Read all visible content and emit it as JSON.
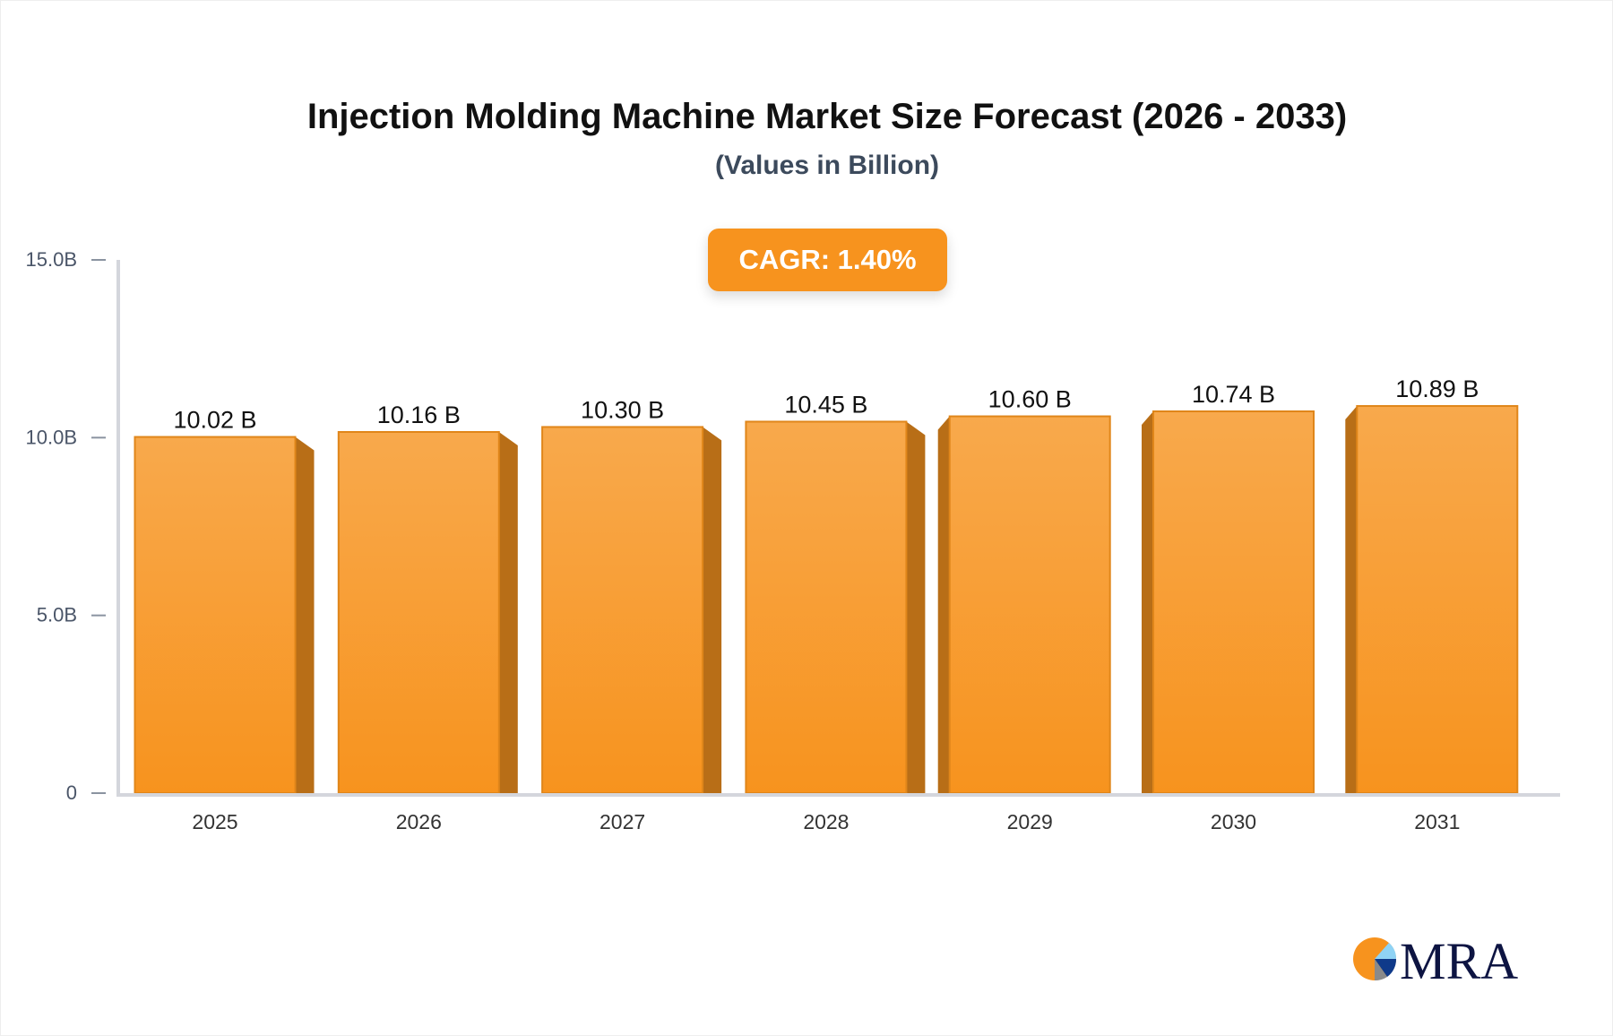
{
  "chart_data": {
    "type": "bar",
    "title": "Injection Molding Machine Market Size Forecast (2026 - 2033)",
    "subtitle": "(Values in Billion)",
    "annotation": "CAGR: 1.40%",
    "categories": [
      "2025",
      "2026",
      "2027",
      "2028",
      "2029",
      "2030",
      "2031"
    ],
    "values": [
      10.02,
      10.16,
      10.3,
      10.45,
      10.6,
      10.74,
      10.89
    ],
    "data_labels": [
      "10.02 B",
      "10.16 B",
      "10.30 B",
      "10.45 B",
      "10.60 B",
      "10.74 B",
      "10.89 B"
    ],
    "yticks": [
      0,
      5,
      10,
      15
    ],
    "ytick_labels": [
      "0",
      "5.0B",
      "10.0B",
      "15.0B"
    ],
    "ylim": [
      0,
      15
    ],
    "grid": false,
    "colors": {
      "bar": "#f7931e",
      "bar_top": "#f8a94c",
      "bar_side": "#b86e17",
      "axis": "#d4d6dc",
      "badge": "#f7931e"
    }
  },
  "logo": {
    "text": "MRA",
    "colors": [
      "#f7931e",
      "#8fd3f5",
      "#0f3a8a",
      "#8a8a8a",
      "#0d1442"
    ]
  }
}
